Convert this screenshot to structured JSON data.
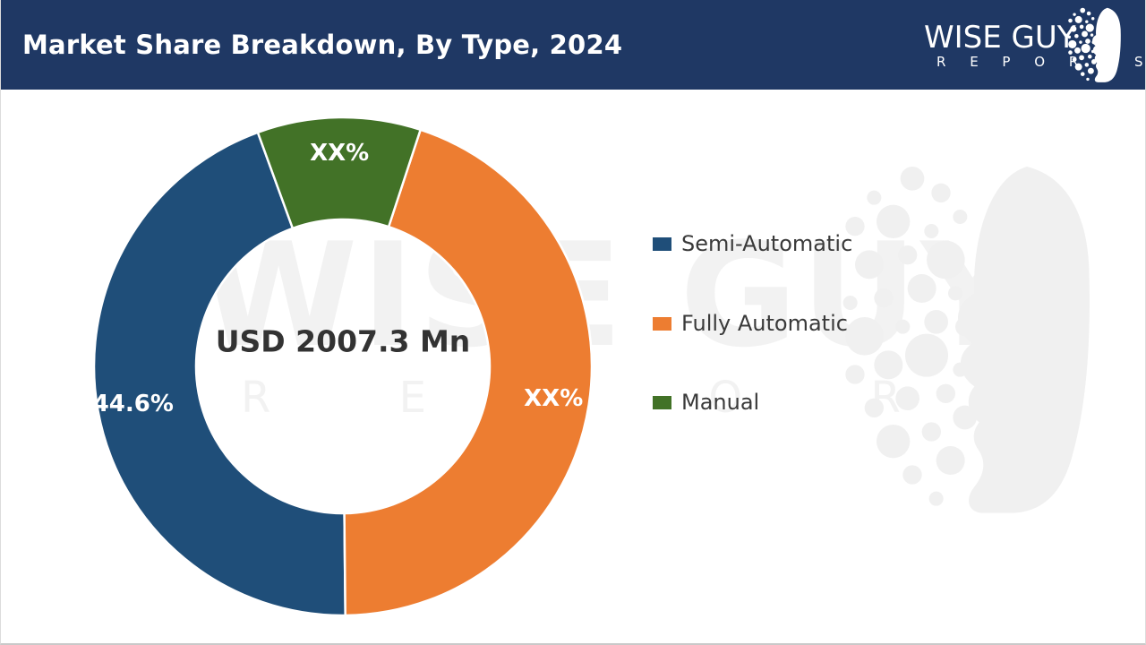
{
  "header": {
    "title": "Market Share Breakdown, By Type, 2024",
    "logo": {
      "name_top": "WISE GUY",
      "name_bottom": "R E P O R T S"
    }
  },
  "watermark": {
    "line1": "WISE GUY",
    "line2": "R E P O R T S"
  },
  "chart_data": {
    "type": "pie",
    "subtype": "donut",
    "title": "Market Share Breakdown, By Type, 2024",
    "center_label": "USD 2007.3 Mn",
    "units": "percent of market share",
    "start_angle_deg": 110,
    "direction": "counterclockwise",
    "legend_position": "right",
    "grid": "off",
    "slices": [
      {
        "label": "Semi-Automatic",
        "value": 44.6,
        "display_label": "44.6%",
        "color": "#1F4E79"
      },
      {
        "label": "Fully Automatic",
        "value": 44.8,
        "display_label": "XX%",
        "color": "#ED7D31"
      },
      {
        "label": "Manual",
        "value": 10.6,
        "display_label": "XX%",
        "color": "#427227"
      }
    ]
  }
}
